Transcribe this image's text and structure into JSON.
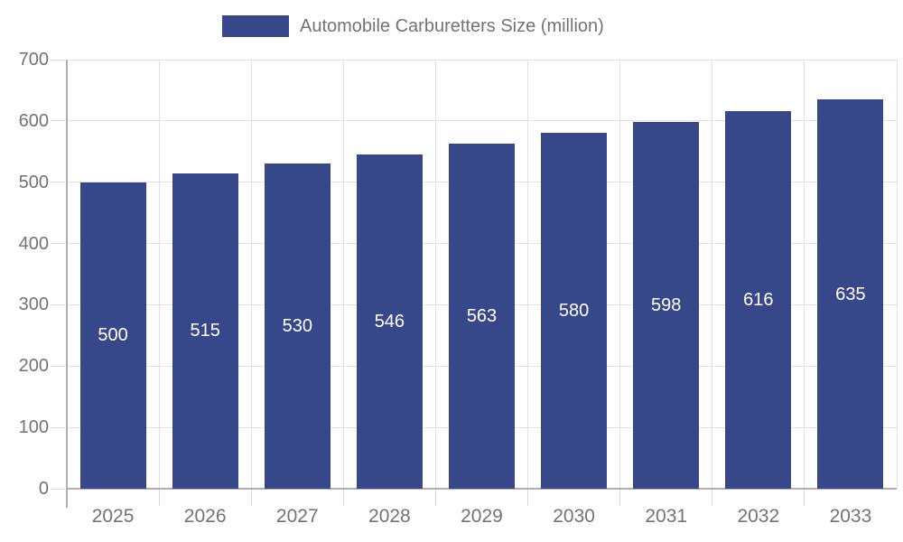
{
  "legend": {
    "label": "Automobile Carburetters Size (million)"
  },
  "chart_data": {
    "type": "bar",
    "title": "Automobile Carburetters Size (million)",
    "categories": [
      "2025",
      "2026",
      "2027",
      "2028",
      "2029",
      "2030",
      "2031",
      "2032",
      "2033"
    ],
    "series": [
      {
        "name": "Automobile Carburetters Size (million)",
        "values": [
          500,
          515,
          530,
          546,
          563,
          580,
          598,
          616,
          635
        ]
      }
    ],
    "xlabel": "",
    "ylabel": "",
    "ylim": [
      0,
      700
    ],
    "yticks": [
      0,
      100,
      200,
      300,
      400,
      500,
      600,
      700
    ],
    "grid": "both",
    "legend_position": "top",
    "value_labels": "inside-center"
  },
  "colors": {
    "bar": "#36488A",
    "bar_label": "#ffffff",
    "grid": "#e2e2e6",
    "axis": "#aeaeae",
    "tick": "#d9d9dc",
    "text": "#737373",
    "background": "#ffffff"
  }
}
